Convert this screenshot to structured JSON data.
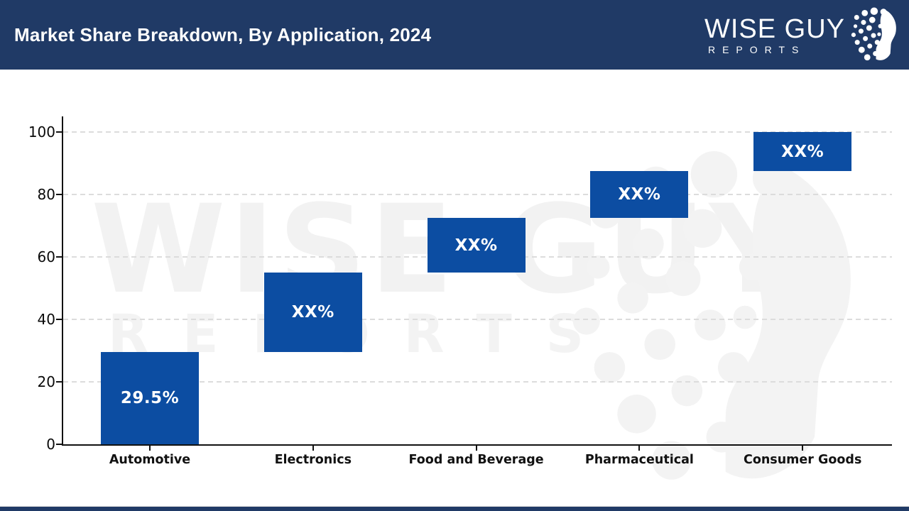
{
  "header": {
    "title": "Market Share Breakdown, By Application, 2024",
    "logo": {
      "line1": "WISE GUY",
      "line2": "REPORTS"
    }
  },
  "watermark": {
    "line1": "WISE GUY",
    "line2": "REPORTS"
  },
  "colors": {
    "header_bg": "#203A66",
    "bar": "#0C4DA2",
    "grid": "#DCDCDC",
    "axis": "#111111",
    "bar_label_text": "#FFFFFF",
    "watermark": "#F2F2F2"
  },
  "chart_data": {
    "type": "bar",
    "subtype": "floating-waterfall",
    "title": "Market Share Breakdown, By Application, 2024",
    "xlabel": "",
    "ylabel": "",
    "categories": [
      "Automotive",
      "Electronics",
      "Food and Beverage",
      "Pharmaceutical",
      "Consumer Goods"
    ],
    "segments": [
      {
        "category": "Automotive",
        "start": 0,
        "end": 29.5,
        "label": "29.5%"
      },
      {
        "category": "Electronics",
        "start": 29.5,
        "end": 55,
        "label": "XX%"
      },
      {
        "category": "Food and Beverage",
        "start": 55,
        "end": 72.5,
        "label": "XX%"
      },
      {
        "category": "Pharmaceutical",
        "start": 72.5,
        "end": 87.5,
        "label": "XX%"
      },
      {
        "category": "Consumer Goods",
        "start": 87.5,
        "end": 100,
        "label": "XX%"
      }
    ],
    "yticks": [
      0,
      20,
      40,
      60,
      80,
      100
    ],
    "ylim": [
      0,
      105
    ],
    "grid": true,
    "legend": "none"
  }
}
